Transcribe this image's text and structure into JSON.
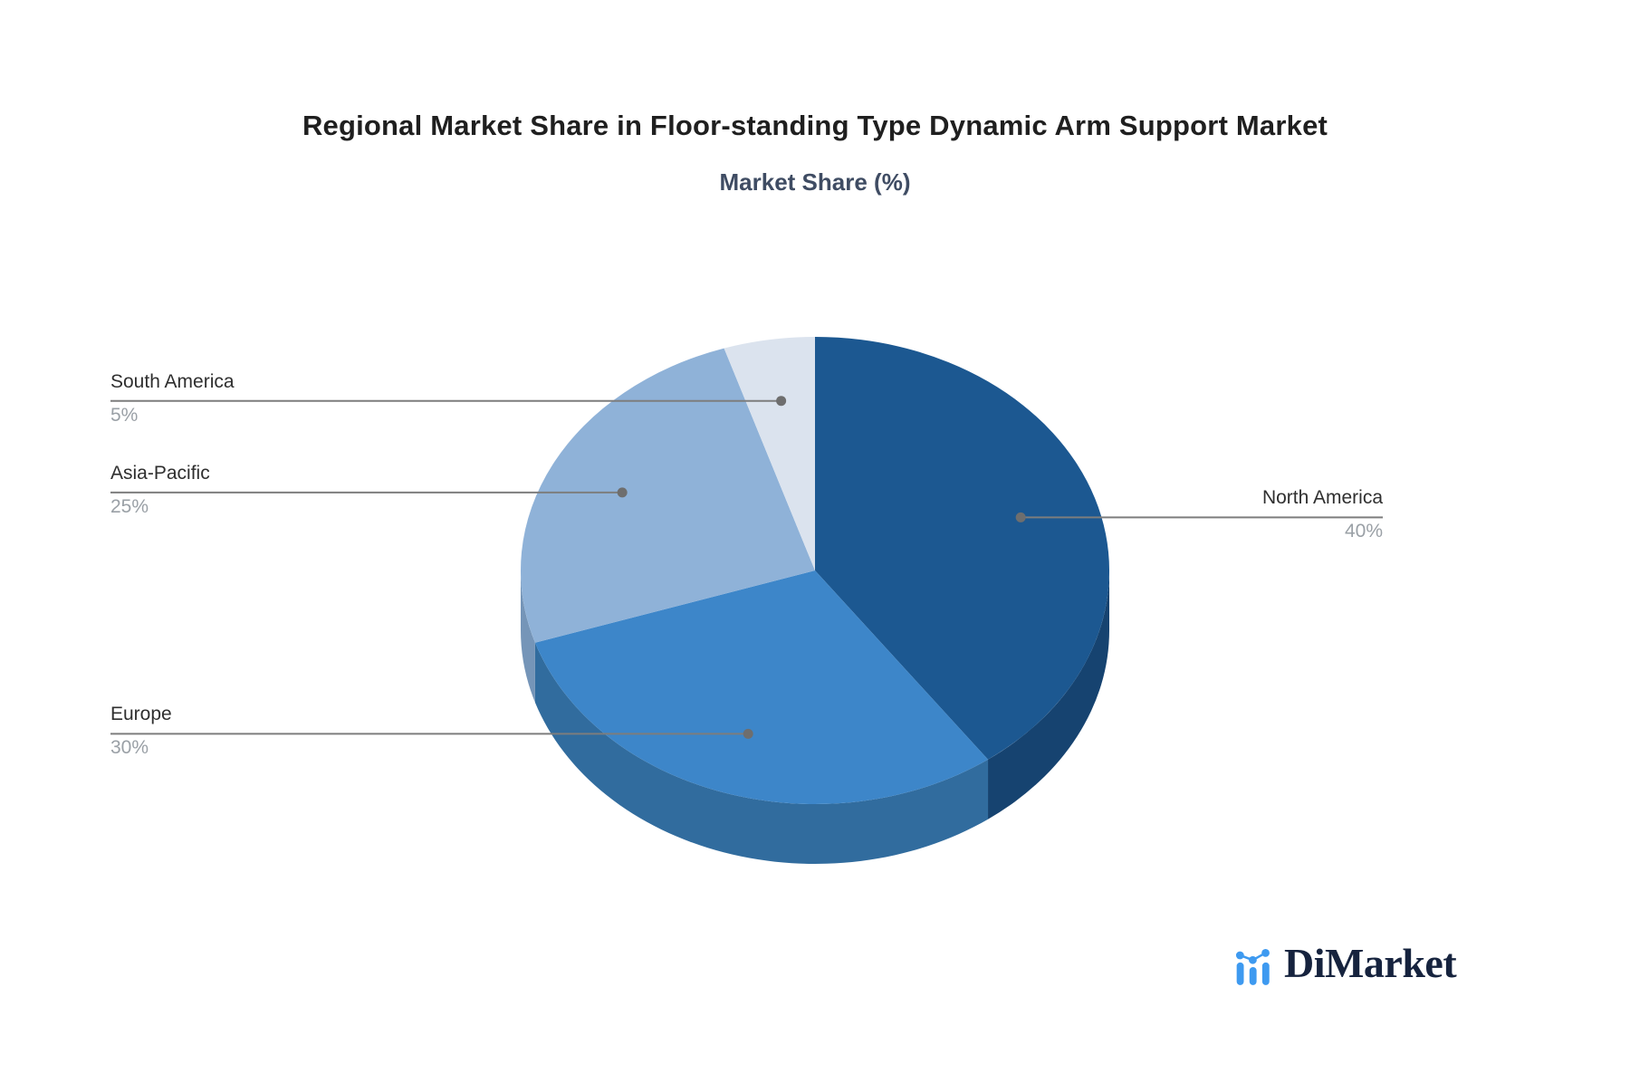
{
  "title": "Regional Market Share in Floor-standing Type Dynamic Arm Support Market",
  "subtitle": "Market Share (%)",
  "logo": {
    "text": "DiMarket"
  },
  "chart_data": {
    "type": "pie",
    "title": "Regional Market Share in Floor-standing Type Dynamic Arm Support Market",
    "subtitle": "Market Share (%)",
    "unit": "%",
    "style": "3d-pie",
    "start_angle": "12-oclock",
    "direction": "clockwise",
    "legend_position": "callout-labels",
    "slices": [
      {
        "label": "North America",
        "value": 40,
        "display_value": "40%",
        "color": "#1c5891",
        "side_color": "#164370"
      },
      {
        "label": "Europe",
        "value": 30,
        "display_value": "30%",
        "color": "#3d86c9",
        "side_color": "#316c9e"
      },
      {
        "label": "Asia-Pacific",
        "value": 25,
        "display_value": "25%",
        "color": "#8fb2d8",
        "side_color": "#7595b8"
      },
      {
        "label": "South America",
        "value": 5,
        "display_value": "5%",
        "color": "#dbe3ee",
        "side_color": "#b6c3d6"
      }
    ],
    "label_line_color": "#7d7d7d",
    "label_dot_color": "#6e6e6e",
    "label_name_color": "#2f2f2f",
    "label_value_color": "#9aa0a6"
  }
}
